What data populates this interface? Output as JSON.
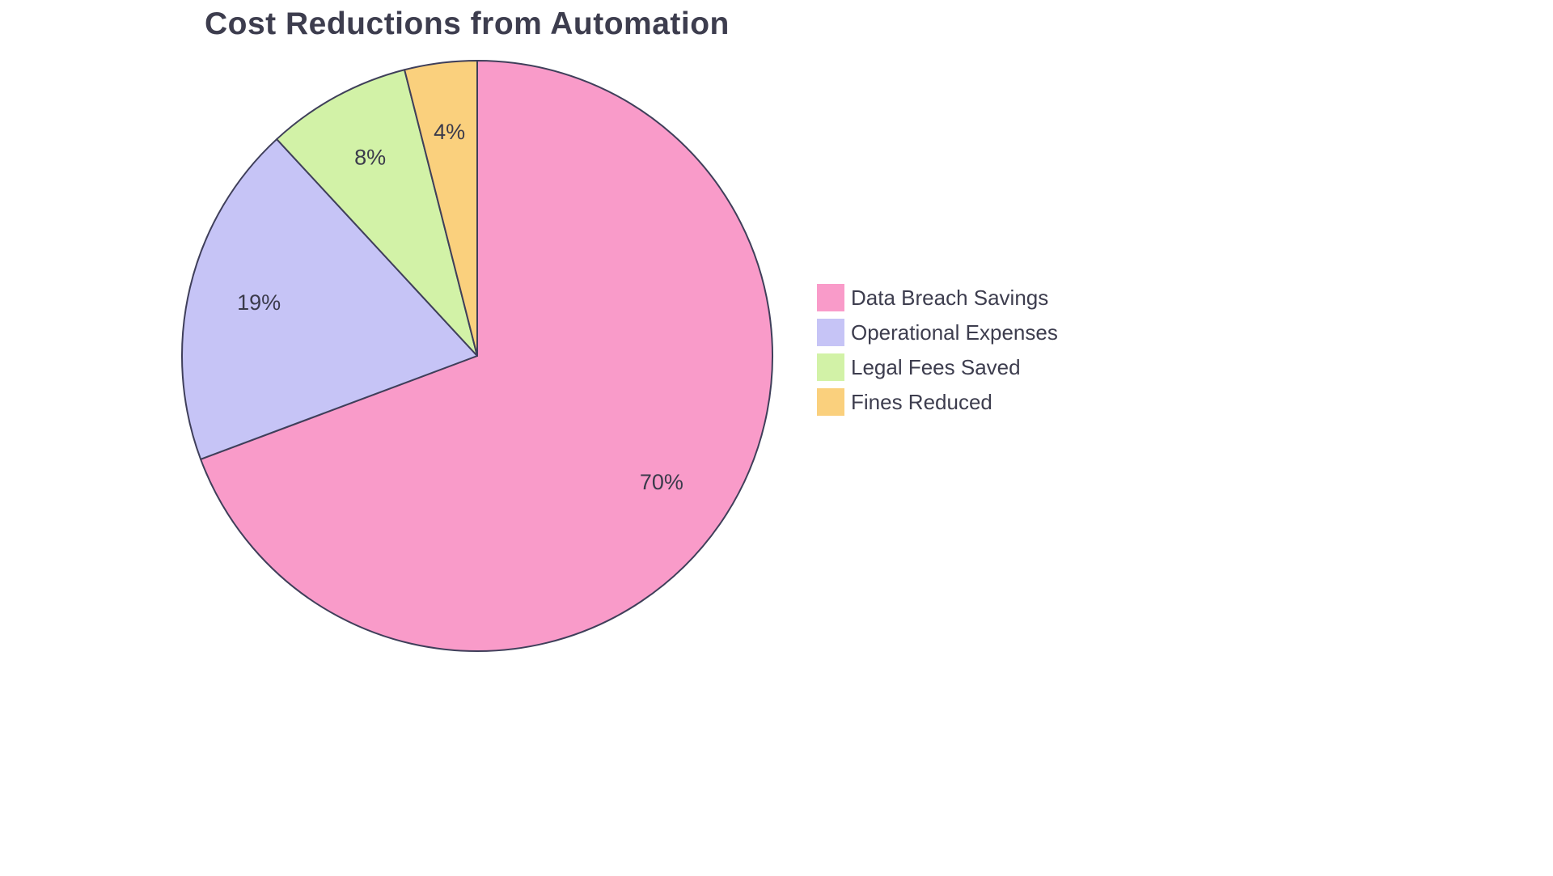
{
  "chart_data": {
    "type": "pie",
    "title": "Cost Reductions from Automation",
    "categories": [
      "Data Breach Savings",
      "Operational Expenses",
      "Legal Fees Saved",
      "Fines Reduced"
    ],
    "values": [
      70,
      19,
      8,
      4
    ],
    "labels": [
      "70%",
      "19%",
      "8%",
      "4%"
    ],
    "colors": [
      "#F99BC9",
      "#C6C4F6",
      "#D2F2A7",
      "#FAD07D"
    ],
    "stroke_color": "#3F3F5A",
    "label_color": "#3b3b4b",
    "legend_position": "right",
    "start_angle_deg": -90,
    "direction": "clockwise"
  }
}
